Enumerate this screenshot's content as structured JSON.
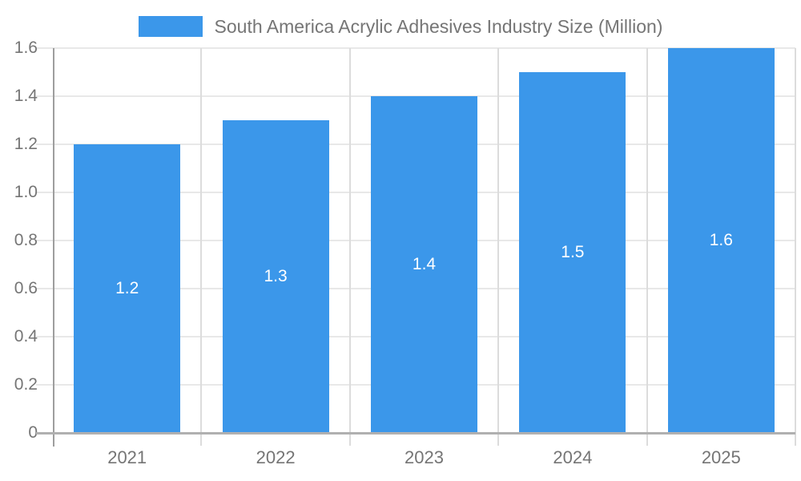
{
  "legend": {
    "label": "South America Acrylic Adhesives Industry Size (Million)"
  },
  "chart_data": {
    "type": "bar",
    "title": "South America Acrylic Adhesives Industry Size (Million)",
    "categories": [
      "2021",
      "2022",
      "2023",
      "2024",
      "2025"
    ],
    "series": [
      {
        "name": "South America Acrylic Adhesives Industry Size (Million)",
        "values": [
          1.2,
          1.3,
          1.4,
          1.5,
          1.6
        ]
      }
    ],
    "bar_labels": [
      "1.2",
      "1.3",
      "1.4",
      "1.5",
      "1.6"
    ],
    "y_ticks": [
      "1.6",
      "1.4",
      "1.2",
      "1.0",
      "0.8",
      "0.6",
      "0.4",
      "0.2",
      "0"
    ],
    "ylim": [
      0,
      1.6
    ],
    "xlabel": "",
    "ylabel": "",
    "grid": true,
    "legend_position": "top",
    "colors": {
      "bar": "#3b97ea",
      "text": "#757575",
      "bar_label_text": "#ffffff",
      "gridline": "#e8e8e8",
      "gridline_vertical": "#dcdcdc",
      "axis_y_line": "#9e9e9e",
      "axis_x_line": "#b0b0b0",
      "background": "#ffffff"
    }
  }
}
